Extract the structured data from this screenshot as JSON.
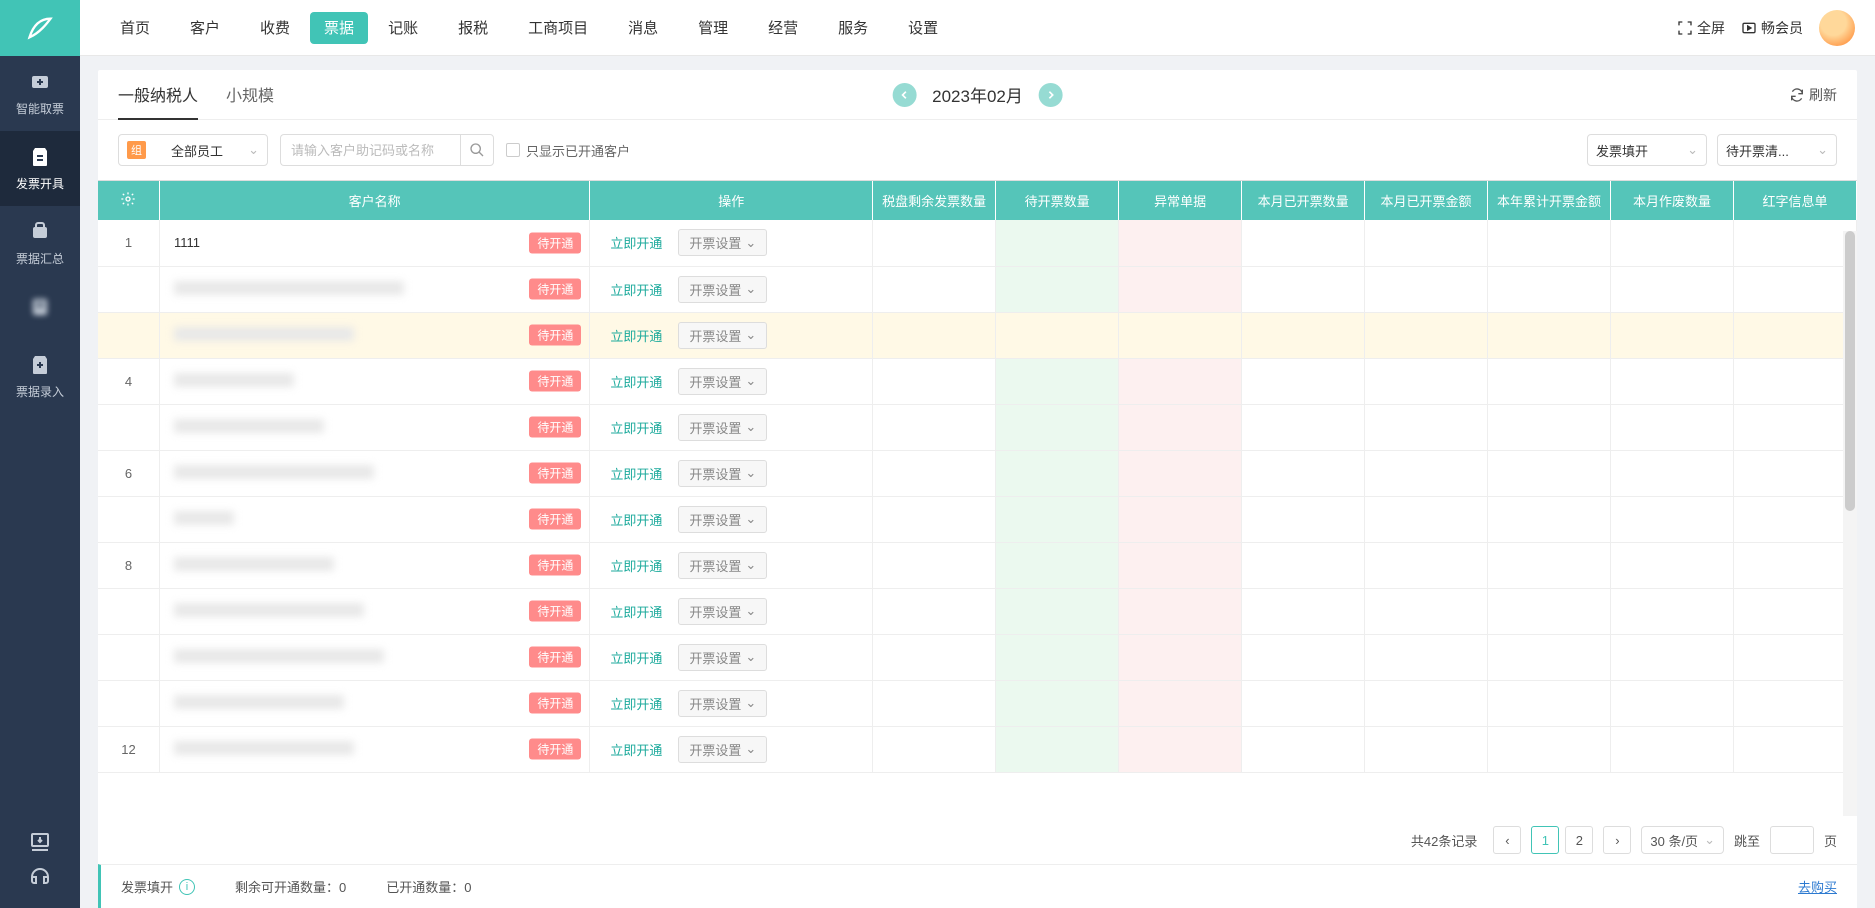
{
  "nav": {
    "items": [
      "首页",
      "客户",
      "收费",
      "票据",
      "记账",
      "报税",
      "工商项目",
      "消息",
      "管理",
      "经营",
      "服务",
      "设置"
    ],
    "active_index": 3,
    "fullscreen": "全屏",
    "vip": "畅会员"
  },
  "sidebar": {
    "items": [
      {
        "label": "智能取票"
      },
      {
        "label": "发票开具"
      },
      {
        "label": "票据汇总"
      },
      {
        "label": "",
        "blurred": true
      },
      {
        "label": "票据录入"
      }
    ],
    "active_index": 1
  },
  "panel": {
    "tabs": [
      "一般纳税人",
      "小规模"
    ],
    "active_tab": 0,
    "date": "2023年02月",
    "refresh": "刷新"
  },
  "filter": {
    "employee_tag": "组",
    "employee_text": "全部员工",
    "search_placeholder": "请输入客户助记码或名称",
    "only_opened": "只显示已开通客户",
    "right_select1": "发票填开",
    "right_select2": "待开票清..."
  },
  "table": {
    "headers": [
      "客户名称",
      "操作",
      "税盘剩余发票数量",
      "待开票数量",
      "异常单据",
      "本月已开票数量",
      "本月已开票金额",
      "本年累计开票金额",
      "本月作废数量",
      "红字信息单"
    ],
    "open_link": "立即开通",
    "settings_btn": "开票设置",
    "status_tag": "待开通",
    "rows": [
      {
        "idx": "1",
        "name": "1111",
        "blur": false,
        "blur_w": 0
      },
      {
        "idx": "",
        "name": "",
        "blur": true,
        "blur_w": 230
      },
      {
        "idx": "",
        "name": "",
        "blur": true,
        "blur_w": 180,
        "highlight": true
      },
      {
        "idx": "4",
        "name": "",
        "blur": true,
        "blur_w": 120
      },
      {
        "idx": "",
        "name": "",
        "blur": true,
        "blur_w": 150
      },
      {
        "idx": "6",
        "name": "",
        "blur": true,
        "blur_w": 200
      },
      {
        "idx": "",
        "name": "",
        "blur": true,
        "blur_w": 60
      },
      {
        "idx": "8",
        "name": "",
        "blur": true,
        "blur_w": 160
      },
      {
        "idx": "",
        "name": "",
        "blur": true,
        "blur_w": 190
      },
      {
        "idx": "",
        "name": "",
        "blur": true,
        "blur_w": 210
      },
      {
        "idx": "",
        "name": "",
        "blur": true,
        "blur_w": 170
      },
      {
        "idx": "12",
        "name": "",
        "blur": true,
        "blur_w": 180
      }
    ]
  },
  "pagination": {
    "total_text": "共42条记录",
    "pages": [
      "1",
      "2"
    ],
    "active_page": 0,
    "per_page": "30 条/页",
    "jump_label": "跳至",
    "page_suffix": "页"
  },
  "footer": {
    "title": "发票填开",
    "remaining_label": "剩余可开通数量：",
    "remaining_value": "0",
    "opened_label": "已开通数量：",
    "opened_value": "0",
    "buy": "去购买"
  }
}
